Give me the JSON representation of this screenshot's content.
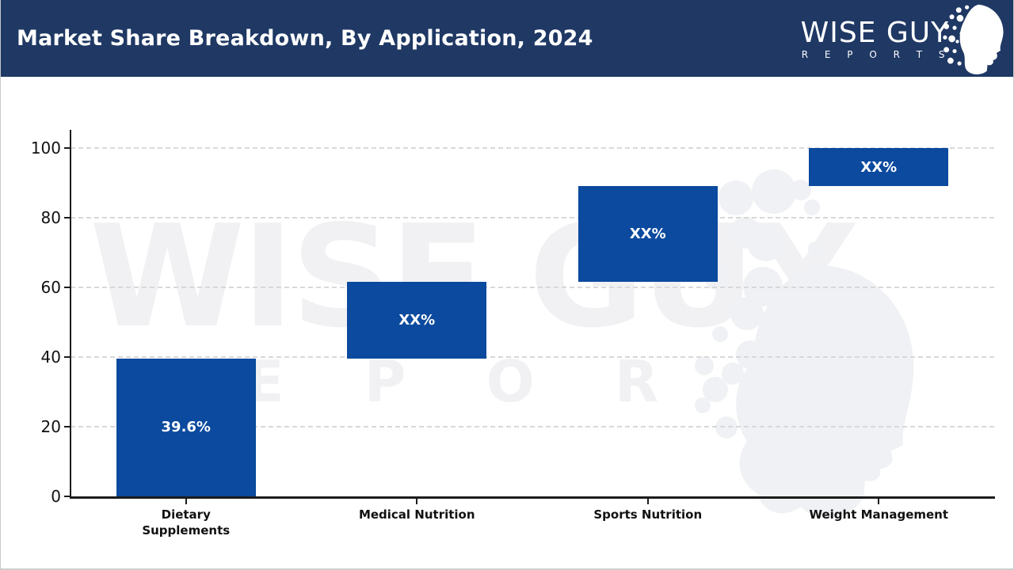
{
  "header": {
    "title": "Market Share Breakdown, By Application, 2024",
    "logo": {
      "line1": "WISE GUY",
      "line2": "R E P O R T S",
      "icon": "dotted-head-profile-icon"
    }
  },
  "watermark": {
    "line1": "WISE GUY",
    "line2": "R E P O R T S",
    "icon": "dotted-head-profile-watermark"
  },
  "colors": {
    "header_bg": "#1F3864",
    "bar": "#0B4A9E",
    "grid": "#D8D8D8",
    "axis": "#1C1C1C",
    "bar_label_text": "#FFFFFF",
    "tick_text": "#111111",
    "watermark": "#F1F1F3"
  },
  "chart_data": {
    "type": "bar",
    "subtype": "waterfall",
    "title": "Market Share Breakdown, By Application, 2024",
    "categories": [
      "Dietary\nSupplements",
      "Medical Nutrition",
      "Sports Nutrition",
      "Weight Management"
    ],
    "segments": [
      {
        "category": "Dietary Supplements",
        "start": 0,
        "end": 39.6,
        "label": "39.6%"
      },
      {
        "category": "Medical Nutrition",
        "start": 39.6,
        "end": 61.5,
        "label": "XX%"
      },
      {
        "category": "Sports Nutrition",
        "start": 61.5,
        "end": 89,
        "label": "XX%"
      },
      {
        "category": "Weight Management",
        "start": 89,
        "end": 100,
        "label": "XX%"
      }
    ],
    "xlabel": "",
    "ylabel": "",
    "yticks": [
      0,
      20,
      40,
      60,
      80,
      100
    ],
    "ylim": [
      0,
      105
    ],
    "grid": "horizontal-dashed",
    "legend": "none",
    "bar_color": "#0B4A9E",
    "value_label_color": "#FFFFFF"
  }
}
